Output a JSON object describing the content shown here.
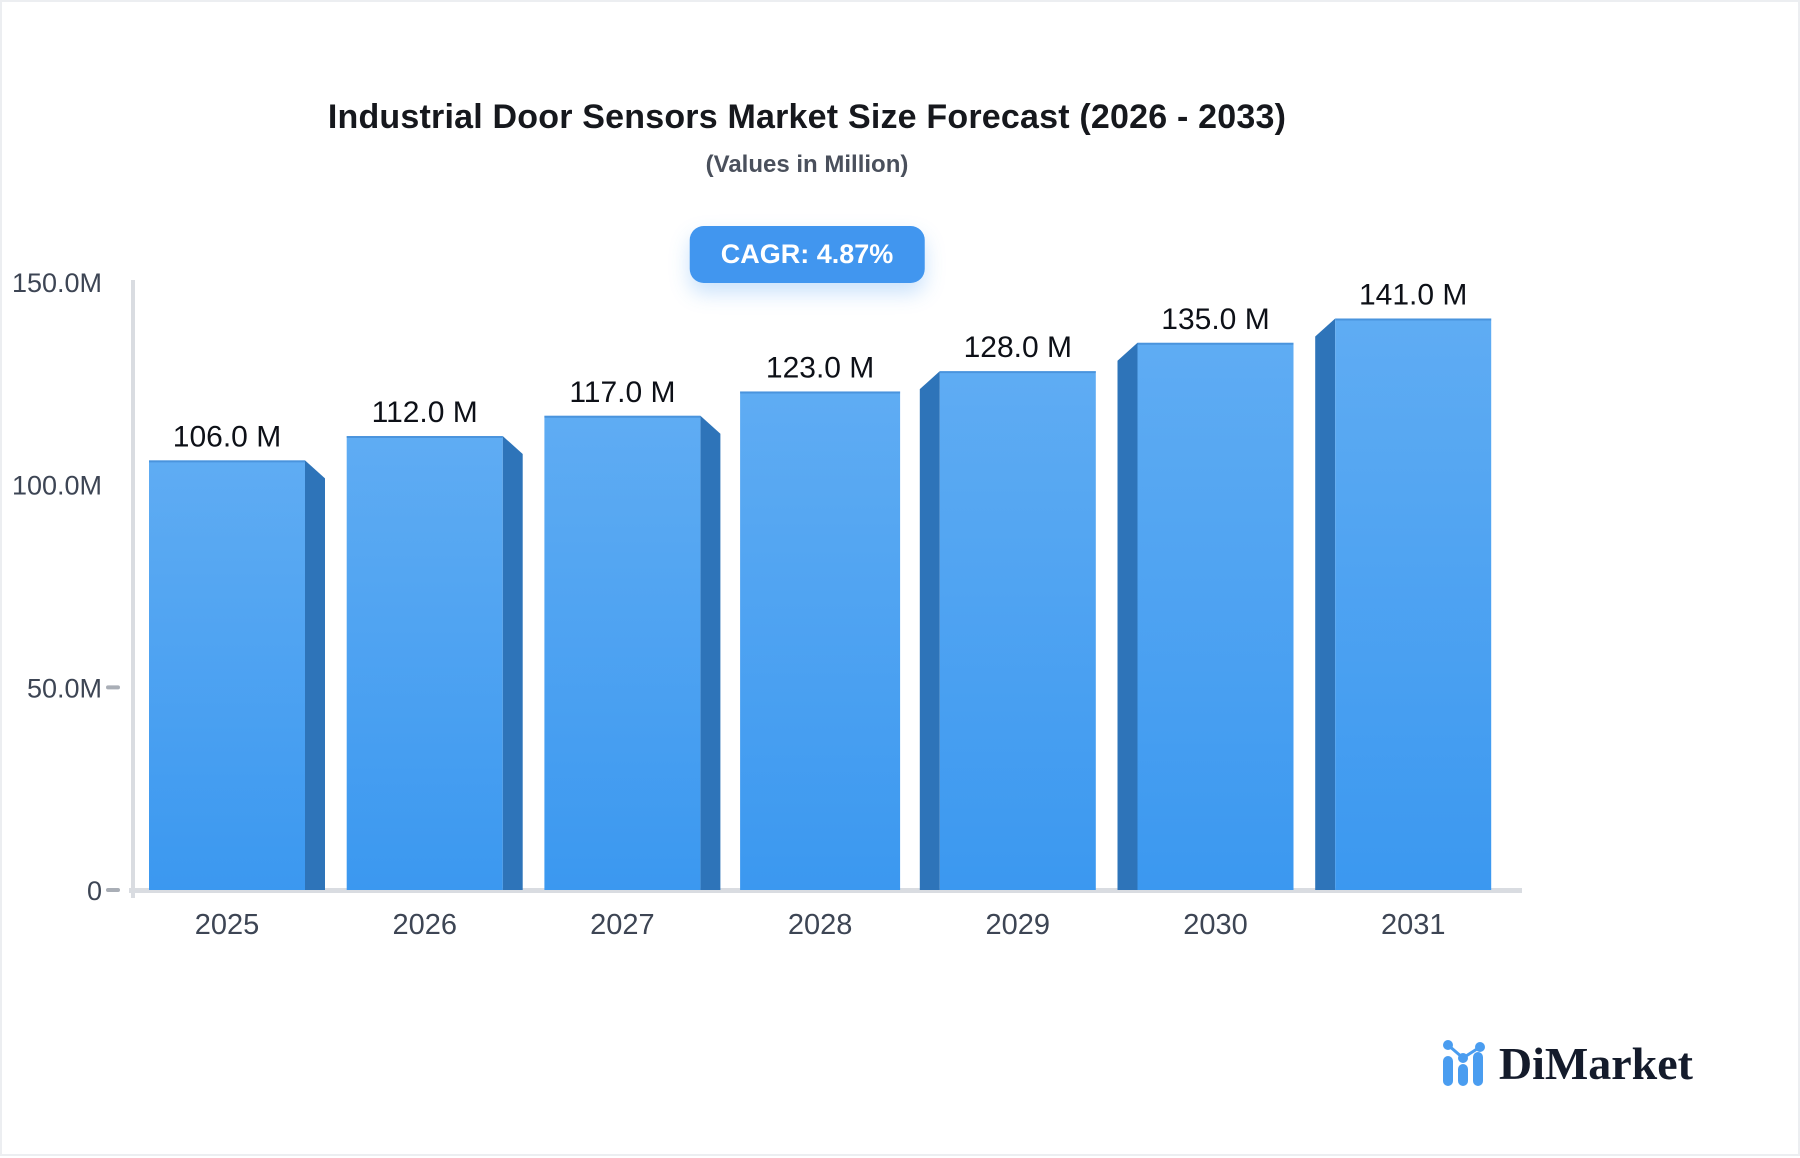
{
  "header": {
    "title": "Industrial Door Sensors Market Size Forecast (2026 - 2033)",
    "subtitle": "(Values in Million)"
  },
  "badge": {
    "label": "CAGR: 4.87%",
    "bg": "#4196EF",
    "text_color": "#ffffff"
  },
  "chart_data": {
    "type": "bar",
    "title": "Industrial Door Sensors Market Size Forecast (2026 - 2033)",
    "subtitle": "(Values in Million)",
    "cagr_annotation": "CAGR: 4.87%",
    "categories": [
      "2025",
      "2026",
      "2027",
      "2028",
      "2029",
      "2030",
      "2031"
    ],
    "values": [
      106.0,
      112.0,
      117.0,
      123.0,
      128.0,
      135.0,
      141.0
    ],
    "bar_labels": [
      "106.0 M",
      "112.0 M",
      "117.0 M",
      "123.0 M",
      "128.0 M",
      "135.0 M",
      "141.0 M"
    ],
    "xlabel": "",
    "ylabel": "",
    "ylim": [
      0,
      150
    ],
    "yticks": [
      {
        "label": "150.0M",
        "value": 150,
        "dash": false
      },
      {
        "label": "100.0M",
        "value": 100,
        "dash": false
      },
      {
        "label": "50.0M",
        "value": 50,
        "dash": true
      },
      {
        "label": "0",
        "value": 0,
        "dash": true
      }
    ],
    "grid": false,
    "legend": false,
    "style": {
      "bar_face_top": "#5FACF3",
      "bar_face_bottom": "#3B98F0",
      "bar_side": "#2E74B9",
      "bar_top_edge": "#3D85D0",
      "axis_line": "#D9DCE1",
      "tick_text": "#3D4554",
      "value_text": "#0D1017",
      "dash_color": "#A9AEB6"
    }
  },
  "footer": {
    "brand": "DiMarket",
    "logo_icon": "mini-bar-chart-icon"
  }
}
